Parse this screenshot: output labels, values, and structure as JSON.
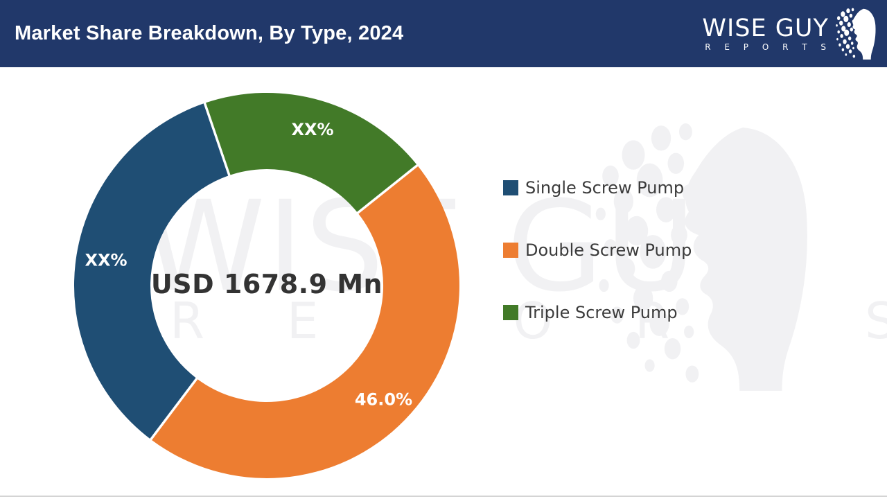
{
  "header": {
    "title": "Market Share Breakdown, By Type, 2024",
    "logo": {
      "line1": "WISE GUY",
      "line2": "R E P O R T S"
    }
  },
  "watermark": {
    "line1": "WISE GUY",
    "line2": "R E P O R T S"
  },
  "chart_data": {
    "type": "pie",
    "subtype": "donut",
    "title": "Market Share Breakdown, By Type, 2024",
    "center_label": "USD 1678.9 Mn",
    "legend_position": "right",
    "segments": [
      {
        "name": "Single Screw Pump",
        "label": "XX%",
        "masked": true,
        "arc_pct": 34.5,
        "color": "#1F4E74"
      },
      {
        "name": "Double Screw Pump",
        "label": "46.0%",
        "masked": false,
        "arc_pct": 46.0,
        "color": "#ED7D31"
      },
      {
        "name": "Triple Screw Pump",
        "label": "XX%",
        "masked": true,
        "arc_pct": 19.5,
        "color": "#427A28"
      }
    ],
    "draw_order": [
      0,
      2,
      1
    ],
    "start_angle_deg": 217,
    "clockwise": true
  },
  "legend": {
    "items": [
      {
        "label": "Single Screw Pump",
        "color": "#1F4E74"
      },
      {
        "label": "Double Screw Pump",
        "color": "#ED7D31"
      },
      {
        "label": "Triple Screw Pump",
        "color": "#427A28"
      }
    ]
  }
}
